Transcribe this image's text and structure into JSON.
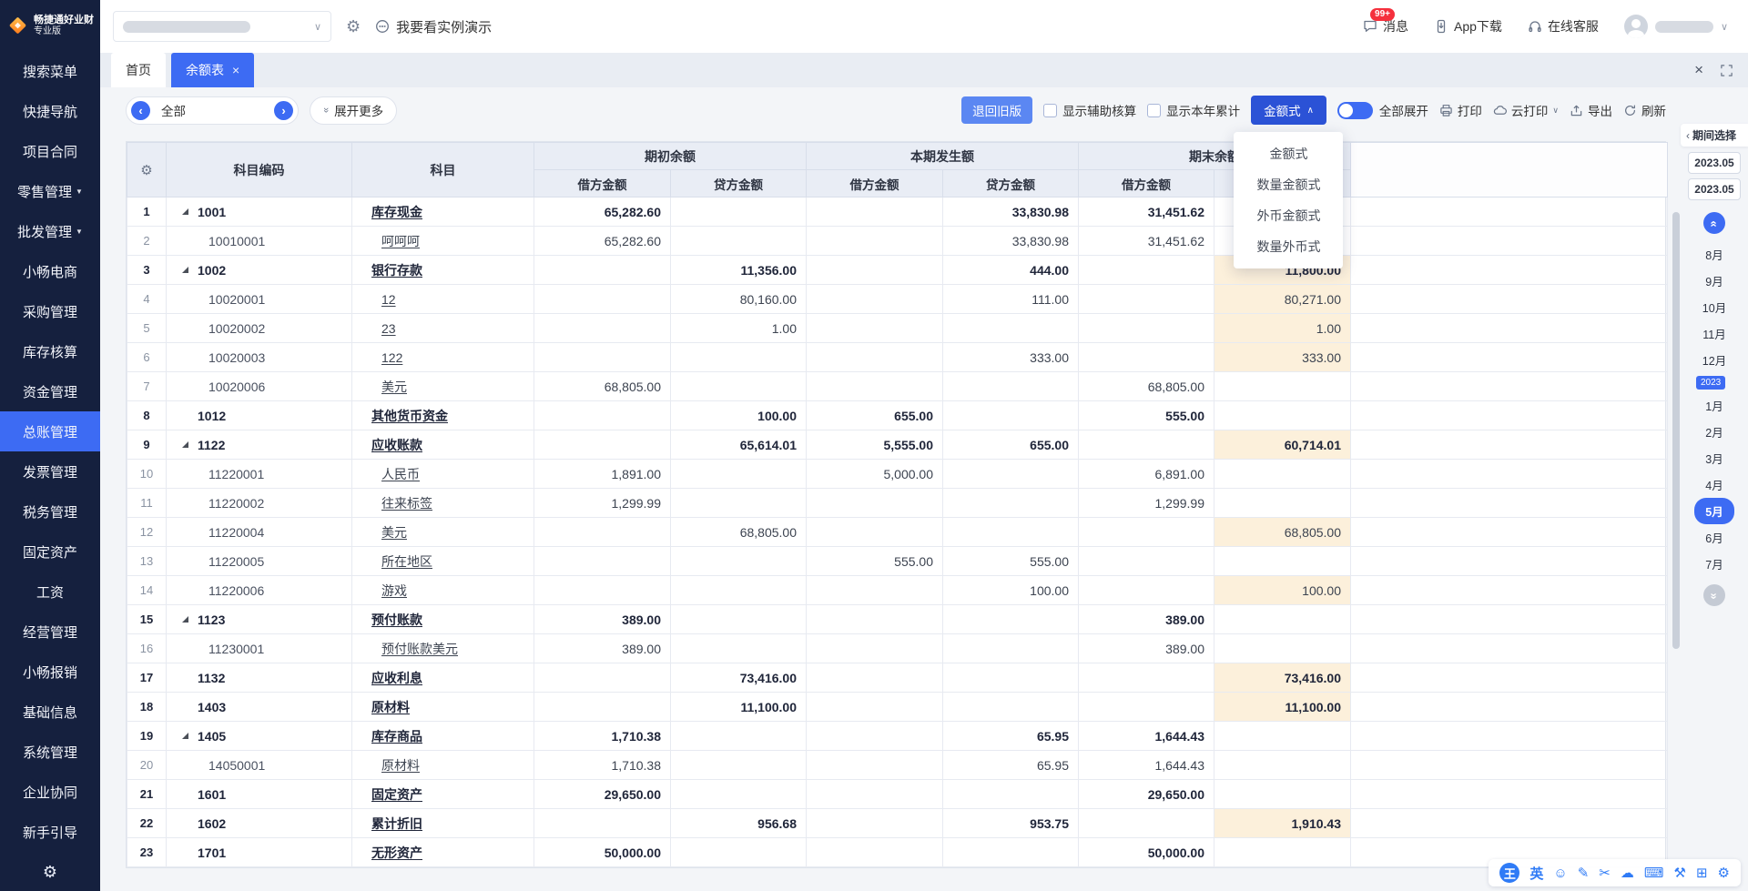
{
  "app": {
    "brand": "畅捷通好业财",
    "edition": "专业版"
  },
  "topbar": {
    "demo_link": "我要看实例演示",
    "messages_label": "消息",
    "messages_badge": "99+",
    "app_download_label": "App下载",
    "support_label": "在线客服"
  },
  "tabs": {
    "items": [
      {
        "label": "首页",
        "active": false,
        "closable": false
      },
      {
        "label": "余额表",
        "active": true,
        "closable": true
      }
    ]
  },
  "toolbar": {
    "scope_value": "全部",
    "expand_more": "展开更多",
    "back_old": "退回旧版",
    "checkbox1": "显示辅助核算",
    "checkbox2": "显示本年累计",
    "format_button": "金额式",
    "expand_all": "全部展开",
    "print": "打印",
    "cloud_print": "云打印",
    "export": "导出",
    "refresh": "刷新"
  },
  "format_menu": {
    "items": [
      "金额式",
      "数量金额式",
      "外币金额式",
      "数量外币式"
    ]
  },
  "sidebar": {
    "items": [
      {
        "label": "搜索菜单"
      },
      {
        "label": "快捷导航"
      },
      {
        "label": "项目合同"
      },
      {
        "label": "零售管理",
        "caret": true
      },
      {
        "label": "批发管理",
        "caret": true
      },
      {
        "label": "小畅电商"
      },
      {
        "label": "采购管理"
      },
      {
        "label": "库存核算"
      },
      {
        "label": "资金管理"
      },
      {
        "label": "总账管理",
        "active": true
      },
      {
        "label": "发票管理"
      },
      {
        "label": "税务管理"
      },
      {
        "label": "固定资产"
      },
      {
        "label": "工资"
      },
      {
        "label": "经营管理"
      },
      {
        "label": "小畅报销"
      },
      {
        "label": "基础信息"
      },
      {
        "label": "系统管理"
      },
      {
        "label": "企业协同"
      },
      {
        "label": "新手引导"
      }
    ]
  },
  "table": {
    "col_code": "科目编码",
    "col_subject": "科目",
    "groups": [
      {
        "label": "期初余额"
      },
      {
        "label": "本期发生额"
      },
      {
        "label": "期末余额"
      }
    ],
    "sub_debit": "借方金额",
    "sub_credit": "贷方金额",
    "rows": [
      {
        "no": 1,
        "code": "1001",
        "name": "库存现金",
        "parent": true,
        "expand": true,
        "values": [
          "65,282.60",
          "",
          "",
          "33,830.98",
          "31,451.62",
          ""
        ]
      },
      {
        "no": 2,
        "code": "10010001",
        "name": "呵呵呵",
        "parent": false,
        "expand": false,
        "values": [
          "65,282.60",
          "",
          "",
          "33,830.98",
          "31,451.62",
          ""
        ]
      },
      {
        "no": 3,
        "code": "1002",
        "name": "银行存款",
        "parent": true,
        "expand": true,
        "values": [
          "",
          "11,356.00",
          "",
          "444.00",
          "",
          "11,800.00"
        ]
      },
      {
        "no": 4,
        "code": "10020001",
        "name": "12",
        "parent": false,
        "expand": false,
        "values": [
          "",
          "80,160.00",
          "",
          "111.00",
          "",
          "80,271.00"
        ]
      },
      {
        "no": 5,
        "code": "10020002",
        "name": "23",
        "parent": false,
        "expand": false,
        "values": [
          "",
          "1.00",
          "",
          "",
          "",
          "1.00"
        ]
      },
      {
        "no": 6,
        "code": "10020003",
        "name": "122",
        "parent": false,
        "expand": false,
        "values": [
          "",
          "",
          "",
          "333.00",
          "",
          "333.00"
        ]
      },
      {
        "no": 7,
        "code": "10020006",
        "name": "美元",
        "parent": false,
        "expand": false,
        "values": [
          "68,805.00",
          "",
          "",
          "",
          "68,805.00",
          ""
        ]
      },
      {
        "no": 8,
        "code": "1012",
        "name": "其他货币资金",
        "parent": true,
        "expand": false,
        "values": [
          "",
          "100.00",
          "655.00",
          "",
          "555.00",
          ""
        ]
      },
      {
        "no": 9,
        "code": "1122",
        "name": "应收账款",
        "parent": true,
        "expand": true,
        "values": [
          "",
          "65,614.01",
          "5,555.00",
          "655.00",
          "",
          "60,714.01"
        ]
      },
      {
        "no": 10,
        "code": "11220001",
        "name": "人民币",
        "parent": false,
        "expand": false,
        "values": [
          "1,891.00",
          "",
          "5,000.00",
          "",
          "6,891.00",
          ""
        ]
      },
      {
        "no": 11,
        "code": "11220002",
        "name": "往来标签",
        "parent": false,
        "expand": false,
        "values": [
          "1,299.99",
          "",
          "",
          "",
          "1,299.99",
          ""
        ]
      },
      {
        "no": 12,
        "code": "11220004",
        "name": "美元",
        "parent": false,
        "expand": false,
        "values": [
          "",
          "68,805.00",
          "",
          "",
          "",
          "68,805.00"
        ]
      },
      {
        "no": 13,
        "code": "11220005",
        "name": "所在地区",
        "parent": false,
        "expand": false,
        "values": [
          "",
          "",
          "555.00",
          "555.00",
          "",
          ""
        ]
      },
      {
        "no": 14,
        "code": "11220006",
        "name": "游戏",
        "parent": false,
        "expand": false,
        "values": [
          "",
          "",
          "",
          "100.00",
          "",
          "100.00"
        ]
      },
      {
        "no": 15,
        "code": "1123",
        "name": "预付账款",
        "parent": true,
        "expand": true,
        "values": [
          "389.00",
          "",
          "",
          "",
          "389.00",
          ""
        ]
      },
      {
        "no": 16,
        "code": "11230001",
        "name": "预付账款美元",
        "parent": false,
        "expand": false,
        "values": [
          "389.00",
          "",
          "",
          "",
          "389.00",
          ""
        ]
      },
      {
        "no": 17,
        "code": "1132",
        "name": "应收利息",
        "parent": true,
        "expand": false,
        "values": [
          "",
          "73,416.00",
          "",
          "",
          "",
          "73,416.00"
        ]
      },
      {
        "no": 18,
        "code": "1403",
        "name": "原材料",
        "parent": true,
        "expand": false,
        "values": [
          "",
          "11,100.00",
          "",
          "",
          "",
          "11,100.00"
        ]
      },
      {
        "no": 19,
        "code": "1405",
        "name": "库存商品",
        "parent": true,
        "expand": true,
        "values": [
          "1,710.38",
          "",
          "",
          "65.95",
          "1,644.43",
          ""
        ]
      },
      {
        "no": 20,
        "code": "14050001",
        "name": "原材料",
        "parent": false,
        "expand": false,
        "values": [
          "1,710.38",
          "",
          "",
          "65.95",
          "1,644.43",
          ""
        ]
      },
      {
        "no": 21,
        "code": "1601",
        "name": "固定资产",
        "parent": true,
        "expand": false,
        "values": [
          "29,650.00",
          "",
          "",
          "",
          "29,650.00",
          ""
        ]
      },
      {
        "no": 22,
        "code": "1602",
        "name": "累计折旧",
        "parent": true,
        "expand": false,
        "values": [
          "",
          "956.68",
          "",
          "953.75",
          "",
          "1,910.43"
        ]
      },
      {
        "no": 23,
        "code": "1701",
        "name": "无形资产",
        "parent": true,
        "expand": false,
        "values": [
          "50,000.00",
          "",
          "",
          "",
          "50,000.00",
          ""
        ]
      }
    ]
  },
  "period_panel": {
    "title": "期间选择",
    "date_from": "2023.05",
    "date_to": "2023.05",
    "months_before": [
      "8月",
      "9月",
      "10月",
      "11月",
      "12月"
    ],
    "year_badge": "2023",
    "months_after": [
      "1月",
      "2月",
      "3月",
      "4月",
      "5月",
      "6月",
      "7月"
    ],
    "selected_month": "5月"
  },
  "ime": {
    "logo": "王",
    "lang": "英",
    "icons": [
      "☺",
      "✎",
      "✂",
      "☁",
      "⌨",
      "⚒",
      "⊞",
      "⚙"
    ]
  },
  "colors": {
    "accent": "#3d6bf3",
    "accent_dark": "#2b52d6",
    "sidebar_bg": "#15203e",
    "highlight_cell": "#fcf0db",
    "badge_red": "#f5303d"
  }
}
